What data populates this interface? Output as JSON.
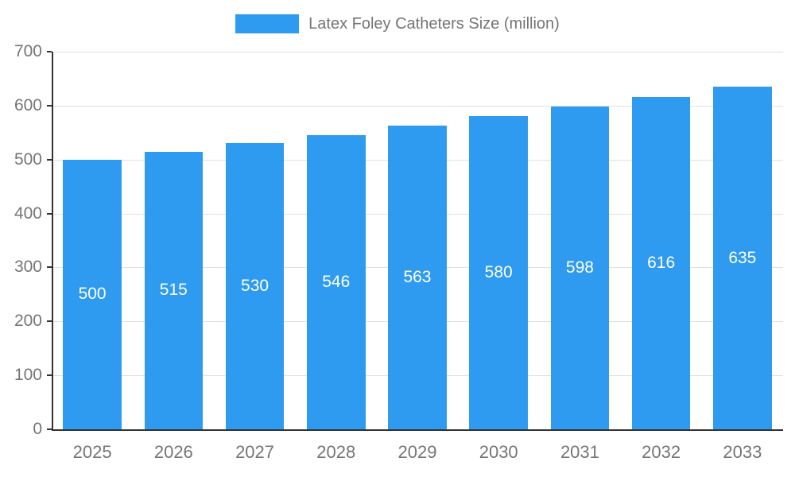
{
  "chart_data": {
    "type": "bar",
    "title": "Latex Foley Catheters Size (million)",
    "categories": [
      "2025",
      "2026",
      "2027",
      "2028",
      "2029",
      "2030",
      "2031",
      "2032",
      "2033"
    ],
    "values": [
      500,
      515,
      530,
      546,
      563,
      580,
      598,
      616,
      635
    ],
    "xlabel": "",
    "ylabel": "",
    "ylim": [
      0,
      700
    ],
    "yticks": [
      0,
      100,
      200,
      300,
      400,
      500,
      600,
      700
    ],
    "grid": "horizontal",
    "legend_position": "top-center",
    "bar_color": "#2f9bf0",
    "value_labels": "inside-center-white"
  },
  "colors": {
    "bar": "#2f9bf0",
    "axis_text": "#757575",
    "legend_text": "#757575",
    "gridline": "#e0e0e0",
    "axis_line": "#333333",
    "value_label": "#ffffff"
  }
}
